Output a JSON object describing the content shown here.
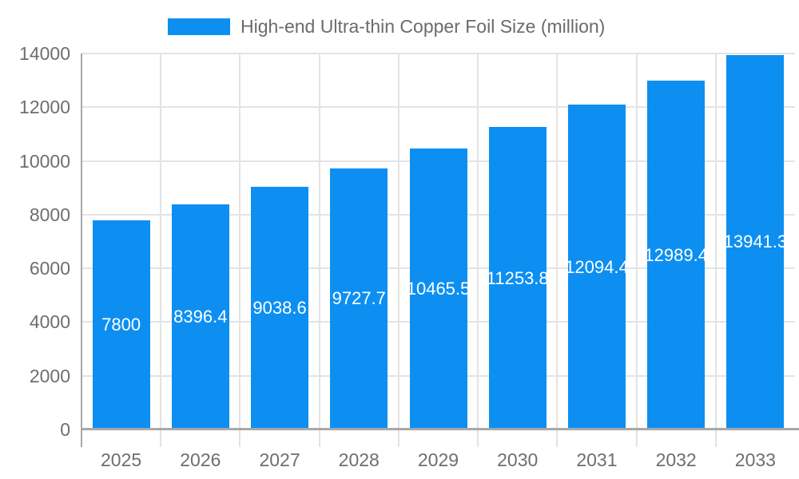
{
  "legend": {
    "label": "High-end Ultra-thin Copper Foil Size (million)"
  },
  "chart_data": {
    "type": "bar",
    "title": "High-end Ultra-thin Copper Foil Size (million)",
    "categories": [
      "2025",
      "2026",
      "2027",
      "2028",
      "2029",
      "2030",
      "2031",
      "2032",
      "2033"
    ],
    "values": [
      7800,
      8396.4,
      9038.6,
      9727.7,
      10465.5,
      11253.8,
      12094.4,
      12989.4,
      13941.3
    ],
    "value_labels": [
      "7800",
      "8396.4",
      "9038.6",
      "9727.7",
      "10465.5",
      "11253.8",
      "12094.4",
      "12989.4",
      "13941.3"
    ],
    "xlabel": "",
    "ylabel": "",
    "ylim": [
      0,
      14000
    ],
    "y_tick_step": 2000,
    "y_ticks": [
      "0",
      "2000",
      "4000",
      "6000",
      "8000",
      "10000",
      "12000",
      "14000"
    ],
    "grid": true,
    "legend_position": "top",
    "colors": {
      "bar": "#0D8FF2",
      "gridline": "#E3E3E3",
      "axis_line": "#A8A8A8",
      "axis_text": "#6E6E6E",
      "bar_label_text": "#FFFFFF"
    }
  }
}
